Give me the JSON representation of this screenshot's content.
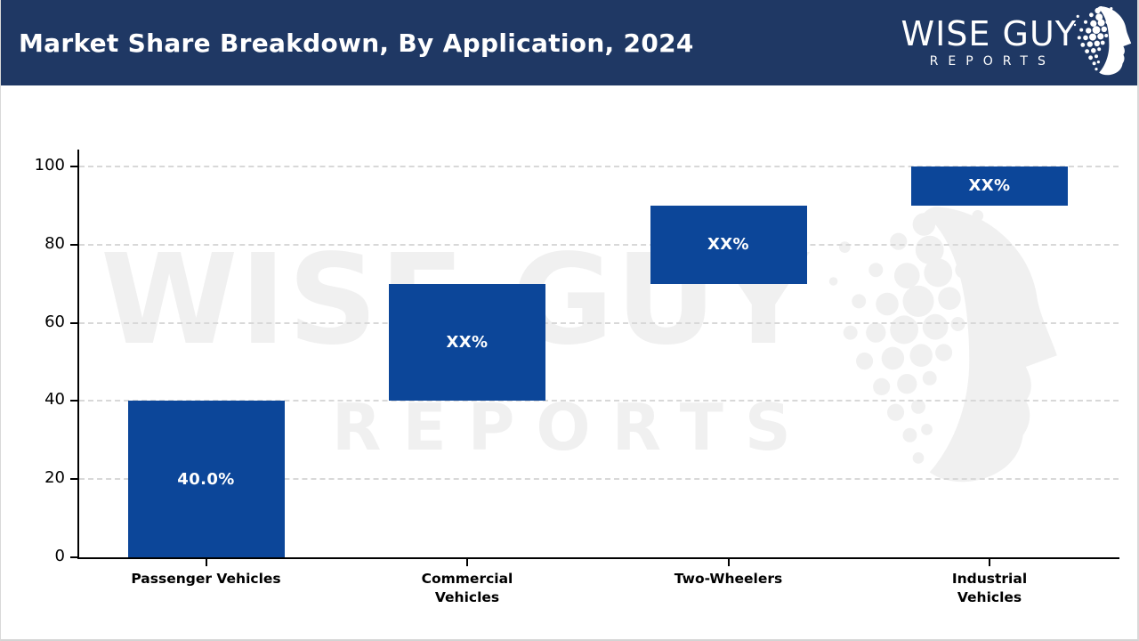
{
  "header": {
    "title": "Market Share Breakdown, By Application, 2024",
    "logo": {
      "line1": "WISE GUY",
      "line2": "REPORTS"
    }
  },
  "watermark": {
    "line1": "WISE GUY",
    "line2": "REPORTS"
  },
  "chart_data": {
    "type": "bar",
    "subtype": "waterfall",
    "title": "Market Share Breakdown, By Application, 2024",
    "categories": [
      [
        "Passenger Vehicles"
      ],
      [
        "Commercial",
        "Vehicles"
      ],
      [
        "Two-Wheelers"
      ],
      [
        "Industrial",
        "Vehicles"
      ]
    ],
    "segments": [
      {
        "category": "Passenger Vehicles",
        "start": 0,
        "end": 40,
        "value_label": "40.0%"
      },
      {
        "category": "Commercial Vehicles",
        "start": 40,
        "end": 70,
        "value_label": "XX%"
      },
      {
        "category": "Two-Wheelers",
        "start": 70,
        "end": 90,
        "value_label": "XX%"
      },
      {
        "category": "Industrial Vehicles",
        "start": 90,
        "end": 100,
        "value_label": "XX%"
      }
    ],
    "ylim": [
      0,
      100
    ],
    "yticks": [
      0,
      20,
      40,
      60,
      80,
      100
    ],
    "xlabel": "",
    "ylabel": "",
    "grid": "horizontal-dashed",
    "legend": "none",
    "colors": {
      "bar": "#0c4699",
      "bar_label": "#ffffff",
      "axis": "#000000",
      "gridline": "#d8d8d8"
    }
  },
  "colors": {
    "header_bg": "#1f3864",
    "page_bg": "#ffffff",
    "watermark": "#f0f0f0",
    "border": "#d4d4d4"
  }
}
